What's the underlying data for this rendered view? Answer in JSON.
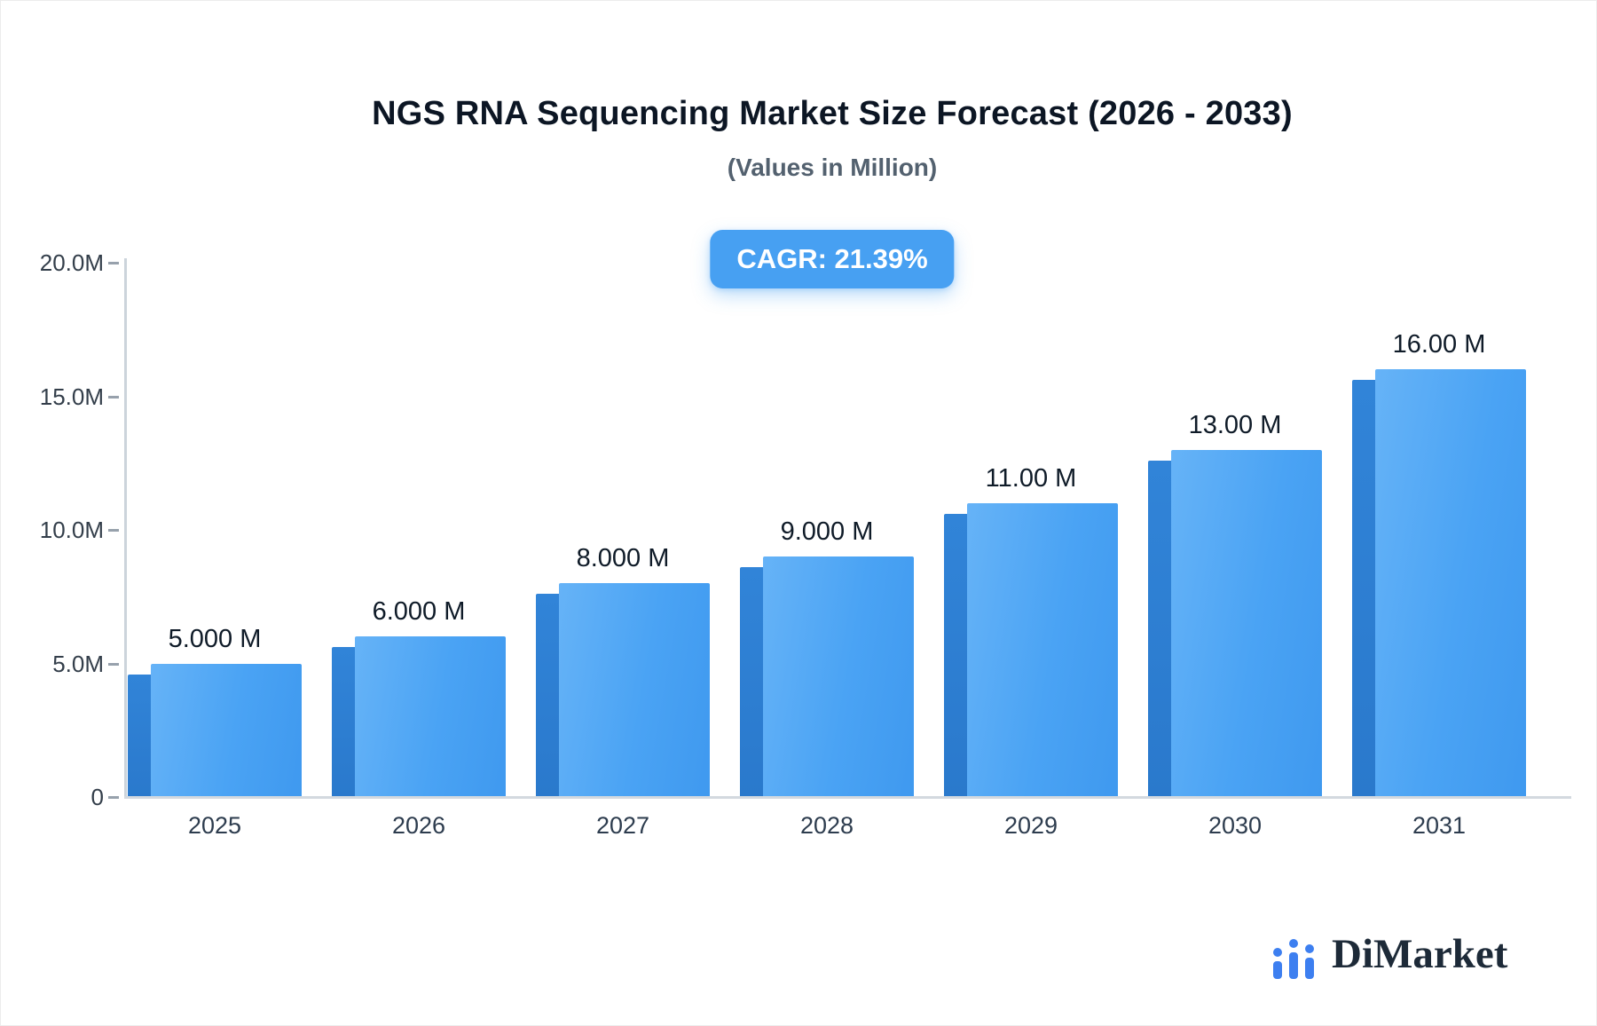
{
  "header": {
    "title": "NGS RNA Sequencing Market Size Forecast (2026 - 2033)",
    "subtitle": "(Values in Million)"
  },
  "badge": {
    "label": "CAGR: 21.39%",
    "color": "#47a0f2"
  },
  "logo": {
    "text": "DiMarket",
    "icon": "bar-chart-icon",
    "icon_color": "#3d7ff0",
    "text_color": "#1d2a38"
  },
  "chart_data": {
    "type": "bar",
    "title": "NGS RNA Sequencing Market Size Forecast (2026 - 2033)",
    "subtitle": "(Values in Million)",
    "unit": "Million",
    "categories": [
      "2025",
      "2026",
      "2027",
      "2028",
      "2029",
      "2030",
      "2031"
    ],
    "values": [
      5,
      6,
      8,
      9,
      11,
      13,
      16
    ],
    "value_labels": [
      "5.000 M",
      "6.000 M",
      "8.000 M",
      "9.000 M",
      "11.00 M",
      "13.00 M",
      "16.00 M"
    ],
    "xlabel": "",
    "ylabel": "",
    "ylim": [
      0,
      20
    ],
    "yticks": [
      0,
      5,
      10,
      15,
      20
    ],
    "ytick_labels": [
      "0",
      "5.0M",
      "10.0M",
      "15.0M",
      "20.0M"
    ],
    "grid": false,
    "legend": false,
    "bar_color": "#4aa3f4",
    "bar_side_color": "#2c7bce"
  }
}
